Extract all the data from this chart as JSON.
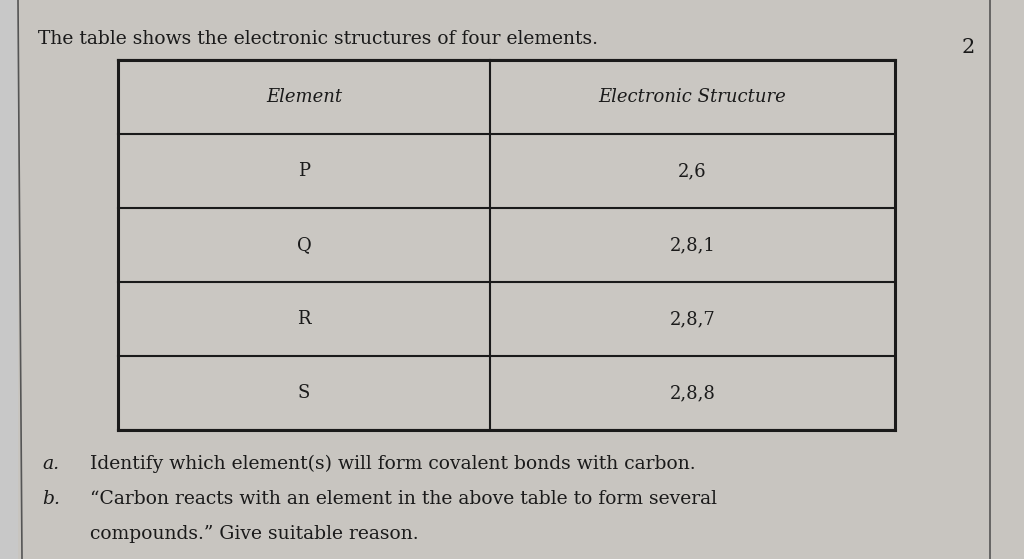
{
  "title_text": "The table shows the electronic structures of four elements.",
  "page_number": "2",
  "col_headers": [
    "Element",
    "Electronic Structure"
  ],
  "rows": [
    [
      "P",
      "2,6"
    ],
    [
      "Q",
      "2,8,1"
    ],
    [
      "R",
      "2,8,7"
    ],
    [
      "S",
      "2,8,8"
    ]
  ],
  "note_a_label": "a.",
  "note_a_text": "Identify which element(s) will form covalent bonds with carbon.",
  "note_b_label": "b.",
  "note_b_text": "“Carbon reacts with an element in the above table to form several",
  "note_b_cont": "compounds.” Give suitable reason.",
  "bg_color": "#c8c8c8",
  "paper_color": "#c8c5c0",
  "table_bg": "#c8c5c0",
  "border_color": "#1a1a1a",
  "text_color": "#1a1a1a",
  "title_fontsize": 13.5,
  "header_fontsize": 13,
  "cell_fontsize": 13,
  "note_fontsize": 13.5
}
